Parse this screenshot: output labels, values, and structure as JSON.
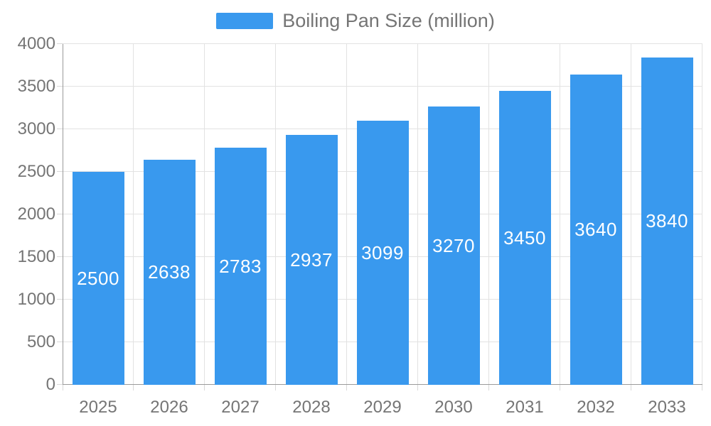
{
  "chart_data": {
    "type": "bar",
    "title": "Boiling Pan Size (million)",
    "legend": [
      "Boiling Pan Size (million)"
    ],
    "legend_position": "top-center",
    "categories": [
      "2025",
      "2026",
      "2027",
      "2028",
      "2029",
      "2030",
      "2031",
      "2032",
      "2033"
    ],
    "values": [
      2500,
      2638,
      2783,
      2937,
      3099,
      3270,
      3450,
      3640,
      3840
    ],
    "value_labels_position": "inside-center",
    "xlabel": "",
    "ylabel": "",
    "ylim": [
      0,
      4000
    ],
    "yticks": [
      0,
      500,
      1000,
      1500,
      2000,
      2500,
      3000,
      3500,
      4000
    ],
    "grid": true,
    "colors": {
      "bar": "#3999ee",
      "grid": "#e2e2e2",
      "axis": "#9a9a9a",
      "tick": "#d9d9d9",
      "axis_text": "#757575",
      "legend_text": "#757575",
      "value_text": "#ffffff",
      "background": "#ffffff"
    }
  }
}
